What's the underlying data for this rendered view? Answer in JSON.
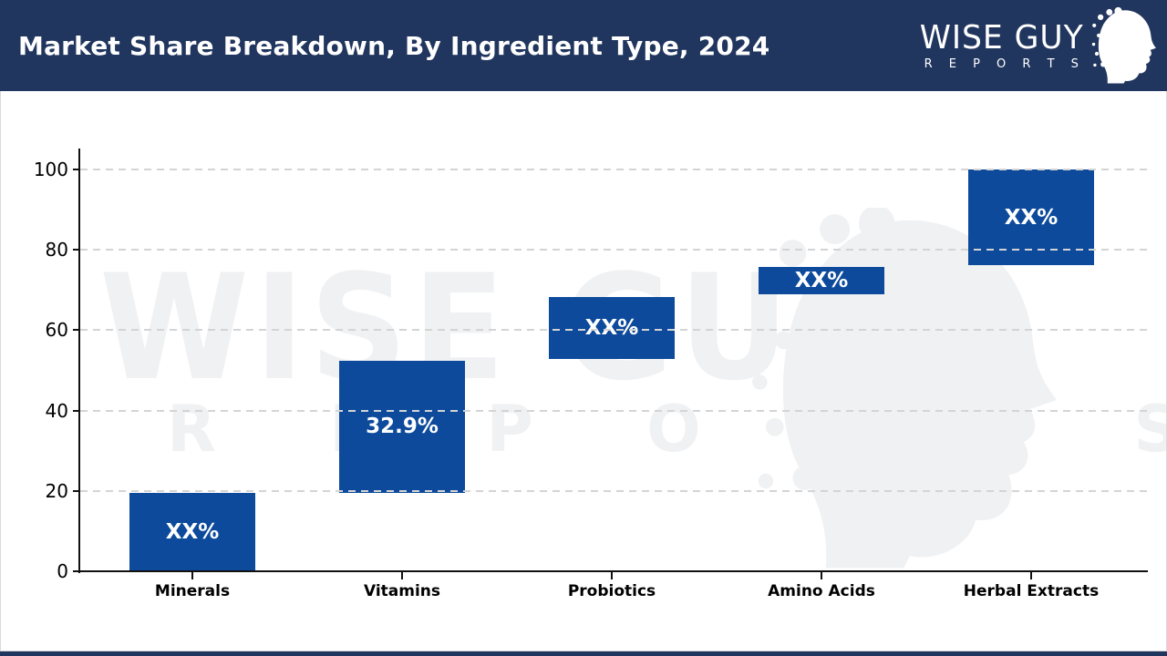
{
  "header": {
    "title": "Market Share Breakdown, By Ingredient Type, 2024",
    "logo": {
      "line1": "WISE GUY",
      "line2": "R E P O R T S"
    }
  },
  "watermark": {
    "line1": "WISE GUY",
    "line2": "R E P O R T S"
  },
  "chart_data": {
    "type": "bar",
    "subtype": "waterfall",
    "title": "Market Share Breakdown, By Ingredient Type, 2024",
    "categories": [
      "Minerals",
      "Vitamins",
      "Probiotics",
      "Amino Acids",
      "Herbal Extracts"
    ],
    "segments": [
      {
        "category": "Minerals",
        "start": 0,
        "end": 19.5,
        "label": "XX%"
      },
      {
        "category": "Vitamins",
        "start": 19.6,
        "end": 52.5,
        "label": "32.9%"
      },
      {
        "category": "Probiotics",
        "start": 52.8,
        "end": 68.3,
        "label": "XX%"
      },
      {
        "category": "Amino Acids",
        "start": 68.9,
        "end": 75.8,
        "label": "XX%"
      },
      {
        "category": "Herbal Extracts",
        "start": 76.1,
        "end": 100,
        "label": "XX%"
      }
    ],
    "y_ticks": [
      0,
      20,
      40,
      60,
      80,
      100
    ],
    "ylim": [
      0,
      100
    ],
    "xlabel": "",
    "ylabel": "",
    "grid": true,
    "legend": false,
    "bar_color": "#0d4a9c"
  },
  "colors": {
    "header_bg": "#21365f",
    "footer_bg": "#21365f",
    "bar": "#0d4a9c",
    "grid": "#d4d4d4",
    "axis": "#111111",
    "watermark": "#f0f1f3",
    "page_bg": "#ffffff"
  }
}
